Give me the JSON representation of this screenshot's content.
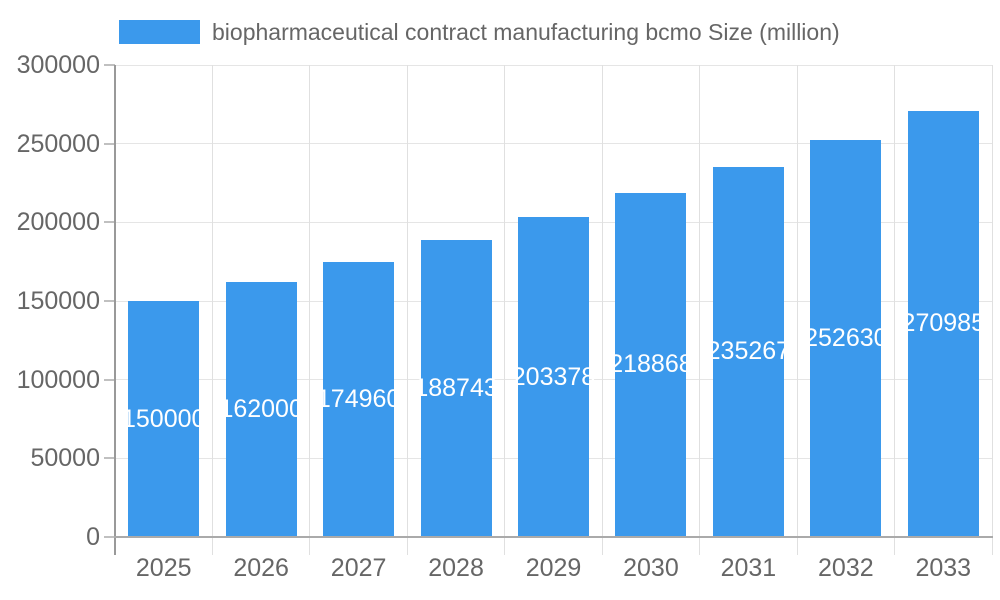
{
  "legend": {
    "label": "biopharmaceutical contract manufacturing bcmo Size (million)"
  },
  "colors": {
    "bar": "#3B99EC",
    "gridline": "#e5e5e5",
    "v_gridline": "#e0e0e0",
    "y_axis_line": "#999999",
    "x_axis_line": "#aaaaaa",
    "tick_mark": "#c0c0c0",
    "axis_text": "#666666",
    "bar_label_text": "#ffffff",
    "background": "#ffffff"
  },
  "chart_data": {
    "type": "bar",
    "title": "",
    "xlabel": "",
    "ylabel": "",
    "legend_position": "top",
    "grid": true,
    "categories": [
      "2025",
      "2026",
      "2027",
      "2028",
      "2029",
      "2030",
      "2031",
      "2032",
      "2033"
    ],
    "series": [
      {
        "name": "biopharmaceutical contract manufacturing bcmo Size (million)",
        "values": [
          150000,
          162000,
          174960,
          188743,
          203378,
          218868,
          235267,
          252630,
          270985
        ]
      }
    ],
    "bar_labels": [
      "150000",
      "162000",
      "174960",
      "188743",
      "203378",
      "218868",
      "235267",
      "252630",
      "270985"
    ],
    "ylim": [
      0,
      300000
    ],
    "ytick_step": 50000,
    "yticks": [
      0,
      50000,
      100000,
      150000,
      200000,
      250000,
      300000
    ],
    "ytick_labels": [
      "0",
      "50000",
      "100000",
      "150000",
      "200000",
      "250000",
      "300000"
    ]
  }
}
